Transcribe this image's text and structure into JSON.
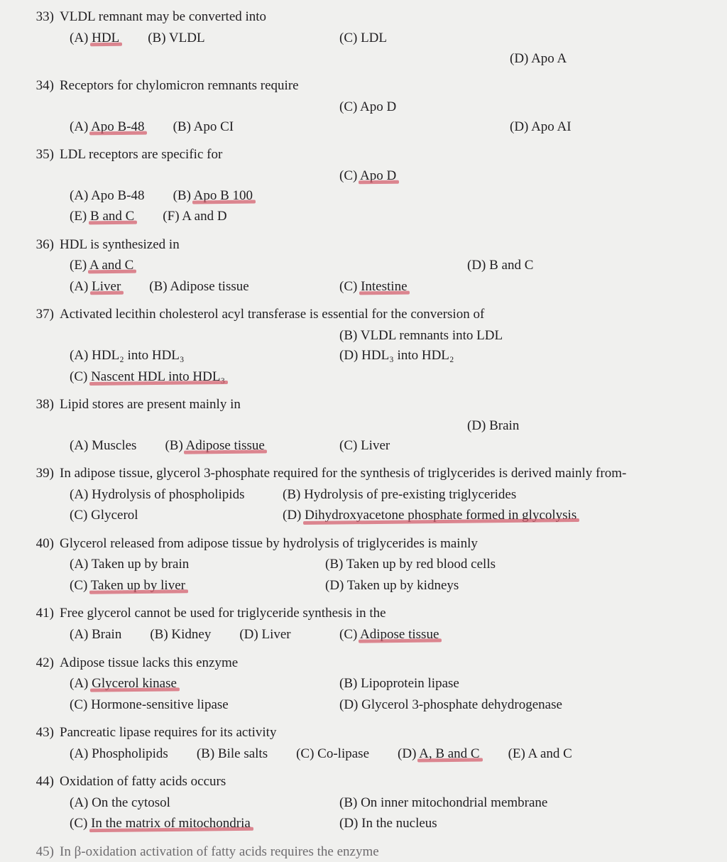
{
  "highlight_color": "#d35b6b",
  "questions": [
    {
      "num": "33)",
      "stem": "VLDL remnant may be converted into",
      "rows": [
        [
          {
            "k": "A",
            "t": "HDL",
            "hl": true
          },
          {
            "k": "B",
            "t": "VLDL"
          },
          {
            "k": "C",
            "t": "LDL",
            "shift": 380
          }
        ],
        [
          {
            "k": "D",
            "t": "Apo A",
            "shift": 620
          }
        ]
      ]
    },
    {
      "num": "34)",
      "stem": "Receptors for chylomicron remnants require",
      "rows": [
        [
          {
            "k": "C",
            "t": "Apo D",
            "shift": 380
          }
        ],
        [
          {
            "k": "A",
            "t": "Apo B-48",
            "hl": true
          },
          {
            "k": "B",
            "t": "Apo CI"
          },
          {
            "k": "D",
            "t": "Apo AI",
            "shift": 620
          }
        ]
      ],
      "stemInlineFirst": true
    },
    {
      "num": "35)",
      "stem": "LDL receptors are specific for",
      "rows": [
        [
          {
            "k": "C",
            "t": "Apo D",
            "hl": true,
            "shift": 380
          }
        ],
        [
          {
            "k": "A",
            "t": "Apo B-48"
          },
          {
            "k": "B",
            "t": "Apo B 100",
            "hl": true
          }
        ],
        [
          {
            "k": "E",
            "t": "B and C",
            "hl": true
          },
          {
            "k": "F",
            "t": "A and D"
          }
        ]
      ],
      "stemInlineFirst": true
    },
    {
      "num": "36)",
      "stem": "HDL is synthesized in",
      "rows": [
        [
          {
            "k": "D",
            "t": "B and C",
            "shift": 560
          },
          {
            "k": "E",
            "t": "A and C",
            "hl": true
          }
        ],
        [
          {
            "k": "A",
            "t": "Liver",
            "hl": true
          },
          {
            "k": "B",
            "t": "Adipose tissue"
          },
          {
            "k": "C",
            "t": "Intestine",
            "hl": true,
            "shift": 380
          }
        ]
      ],
      "stemRow": 1
    },
    {
      "num": "37)",
      "stem": "Activated lecithin cholesterol acyl transferase is essential for the conversion of",
      "rows": [
        [
          {
            "k": "B",
            "t": "VLDL remnants into LDL",
            "shift": 380
          }
        ],
        [
          {
            "k": "A",
            "t": "HDL₂ into HDL₃"
          },
          {
            "k": "D",
            "t": "HDL₃ into HDL₂",
            "shift": 380
          }
        ],
        [
          {
            "k": "C",
            "t": "Nascent HDL into HDL₃",
            "hl": true
          }
        ]
      ],
      "stemInlineFirst": true
    },
    {
      "num": "38)",
      "stem": "Lipid stores are present mainly in",
      "rows": [
        [
          {
            "k": "D",
            "t": "Brain",
            "shift": 560
          }
        ],
        [
          {
            "k": "A",
            "t": "Muscles"
          },
          {
            "k": "B",
            "t": "Adipose tissue",
            "hl": true
          },
          {
            "k": "C",
            "t": "Liver",
            "shift": 380
          }
        ]
      ],
      "stemInlineFirst": true
    },
    {
      "num": "39)",
      "stem": "In adipose tissue, glycerol 3-phosphate required for the synthesis of triglycerides is derived mainly from-",
      "rows": [
        [
          {
            "k": "A",
            "t": "Hydrolysis of phospholipids"
          },
          {
            "k": "B",
            "t": "Hydrolysis of pre-existing triglycerides",
            "shift": 300
          }
        ],
        [
          {
            "k": "C",
            "t": "Glycerol"
          },
          {
            "k": "D",
            "t": "Dihydroxyacetone phosphate formed in glycolysis",
            "hl": true,
            "shift": 300
          }
        ]
      ]
    },
    {
      "num": "40)",
      "stem": "Glycerol released from adipose tissue by hydrolysis of triglycerides is mainly",
      "rows": [
        [
          {
            "k": "A",
            "t": "Taken up by brain"
          },
          {
            "k": "B",
            "t": "Taken up by red blood cells",
            "shift": 360
          }
        ],
        [
          {
            "k": "C",
            "t": "Taken up by liver",
            "hl": true
          },
          {
            "k": "D",
            "t": "Taken up by kidneys",
            "shift": 360
          }
        ]
      ]
    },
    {
      "num": "41)",
      "stem": "Free glycerol cannot be used for triglyceride synthesis in the",
      "rows": [
        [
          {
            "k": "A",
            "t": "Brain"
          },
          {
            "k": "B",
            "t": "Kidney"
          },
          {
            "k": "C",
            "t": "Adipose tissue",
            "hl": true,
            "shift": 380
          },
          {
            "k": "D",
            "t": "Liver"
          }
        ]
      ]
    },
    {
      "num": "42)",
      "stem": "Adipose tissue lacks this enzyme",
      "rows": [
        [
          {
            "k": "A",
            "t": "Glycerol kinase",
            "hl": true
          },
          {
            "k": "B",
            "t": "Lipoprotein lipase",
            "shift": 380
          }
        ],
        [
          {
            "k": "C",
            "t": "Hormone-sensitive lipase"
          },
          {
            "k": "D",
            "t": "Glycerol 3-phosphate dehydrogenase",
            "shift": 380
          }
        ]
      ]
    },
    {
      "num": "43)",
      "stem": "Pancreatic lipase requires for its activity",
      "rows": [
        [
          {
            "k": "A",
            "t": "Phospholipids"
          },
          {
            "k": "B",
            "t": "Bile salts"
          },
          {
            "k": "C",
            "t": "Co-lipase"
          },
          {
            "k": "D",
            "t": "A, B and C",
            "hl": true
          },
          {
            "k": "E",
            "t": "A and C"
          }
        ]
      ]
    },
    {
      "num": "44)",
      "stem": "Oxidation of fatty acids occurs",
      "rows": [
        [
          {
            "k": "A",
            "t": "On the cytosol"
          },
          {
            "k": "B",
            "t": "On inner mitochondrial membrane",
            "shift": 380
          }
        ],
        [
          {
            "k": "C",
            "t": "In the matrix of mitochondria",
            "hl": true
          },
          {
            "k": "D",
            "t": "In the nucleus",
            "shift": 380
          }
        ]
      ]
    }
  ],
  "cutoff": {
    "num": "45)",
    "stem": "In β-oxidation activation of fatty acids requires the enzyme"
  }
}
